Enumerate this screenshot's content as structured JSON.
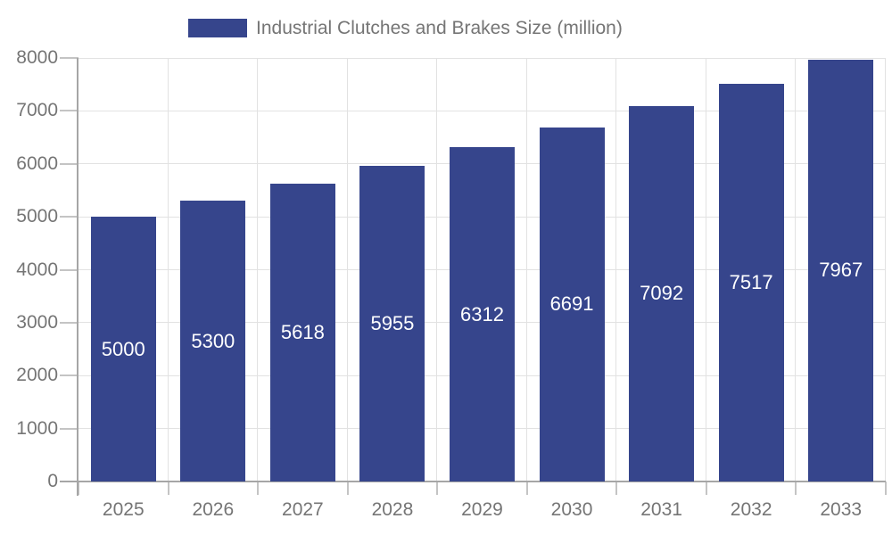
{
  "chart_data": {
    "type": "bar",
    "title": "",
    "legend": "Industrial Clutches and Brakes Size (million)",
    "legend_position": "top-center",
    "categories": [
      "2025",
      "2026",
      "2027",
      "2028",
      "2029",
      "2030",
      "2031",
      "2032",
      "2033"
    ],
    "values": [
      5000,
      5300,
      5618,
      5955,
      6312,
      6691,
      7092,
      7517,
      7967
    ],
    "bar_labels": [
      "5000",
      "5300",
      "5618",
      "5955",
      "6312",
      "6691",
      "7092",
      "7517",
      "7967"
    ],
    "series": [
      {
        "name": "Industrial Clutches and Brakes Size (million)",
        "values": [
          5000,
          5300,
          5618,
          5955,
          6312,
          6691,
          7092,
          7517,
          7967
        ]
      }
    ],
    "xlabel": "",
    "ylabel": "",
    "ylim": [
      0,
      8000
    ],
    "ytick_step": 1000,
    "ytick_labels": [
      "0",
      "1000",
      "2000",
      "3000",
      "4000",
      "5000",
      "6000",
      "7000",
      "8000"
    ],
    "grid": true,
    "colors": {
      "bar": "#36458C",
      "bar_label": "#ffffff",
      "gridline": "#e2e2e2",
      "axis_line": "#a6a6a6",
      "tick": "#c4c4c4",
      "tick_label": "#757575",
      "legend_text": "#757575",
      "background": "#ffffff"
    }
  }
}
